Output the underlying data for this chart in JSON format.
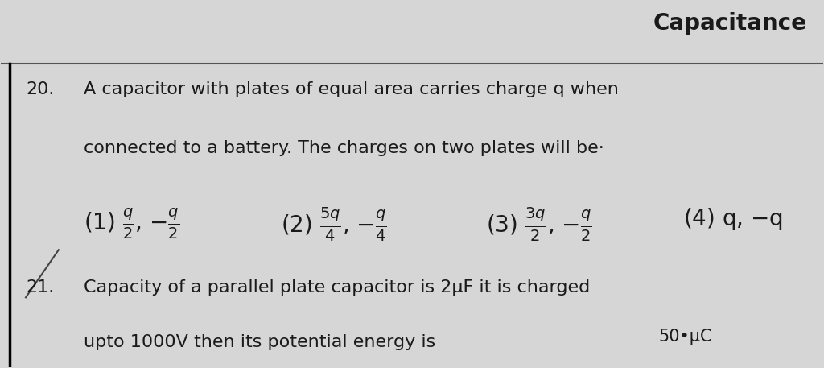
{
  "title": "Capacitance",
  "title_fontsize": 20,
  "title_bold": true,
  "background_color": "#d6d6d6",
  "content_background": "#e0e0e0",
  "border_color": "#000000",
  "q20_number": "20.",
  "q20_line1": "A capacitor with plates of equal area carries charge q when",
  "q20_line2": "connected to a battery. The charges on two plates will be·",
  "q21_number": "21.",
  "q21_line1": "Capacity of a parallel plate capacitor is 2μF it is charged",
  "q21_line2": "upto 1000V then its potential energy is",
  "q21_answer": "50•μC",
  "text_color": "#1a1a1a",
  "line_color": "#555555",
  "main_fontsize": 16,
  "options_fontsize": 20
}
